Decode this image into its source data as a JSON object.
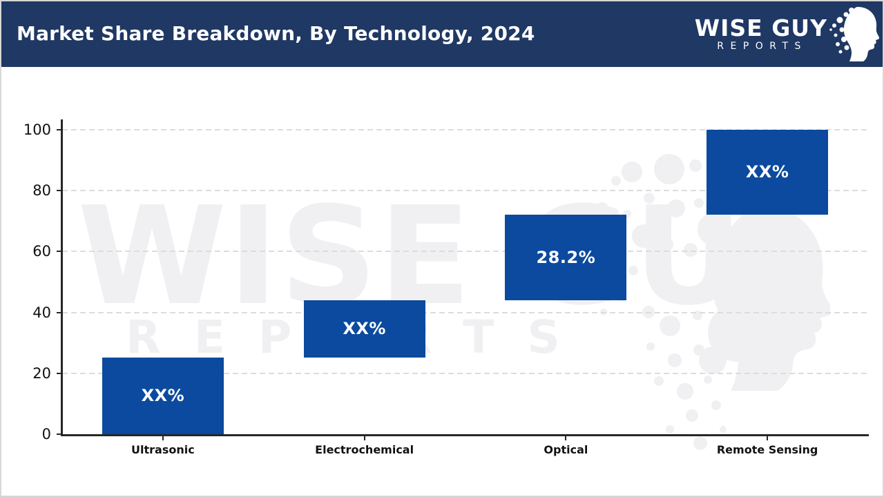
{
  "header": {
    "title": "Market Share Breakdown, By Technology, 2024",
    "logo": {
      "brand": "WISE GUY",
      "sub": "REPORTS"
    }
  },
  "watermark": {
    "brand": "WISE GU",
    "sub": "REPORTS"
  },
  "theme": {
    "header_bg": "#1f3864",
    "bar_color": "#0b4a9e",
    "grid_color": "#dcdcdc",
    "axis_color": "#262626",
    "watermark_color": "#f0f0f2",
    "label_color": "#ffffff"
  },
  "chart_data": {
    "type": "bar",
    "subtype": "waterfall",
    "title": "Market Share Breakdown, By Technology, 2024",
    "categories": [
      "Ultrasonic",
      "Electrochemical",
      "Optical",
      "Remote Sensing"
    ],
    "segments": [
      {
        "label": "XX%",
        "start": 0,
        "end": 25.2
      },
      {
        "label": "XX%",
        "start": 25.2,
        "end": 44.0
      },
      {
        "label": "28.2%",
        "start": 44.0,
        "end": 72.2
      },
      {
        "label": "XX%",
        "start": 72.2,
        "end": 100
      }
    ],
    "ylabel": "",
    "xlabel": "",
    "yticks": [
      0,
      20,
      40,
      60,
      80,
      100
    ],
    "ylim": [
      0,
      103
    ],
    "grid": "dashed-horizontal",
    "legend": "none"
  }
}
